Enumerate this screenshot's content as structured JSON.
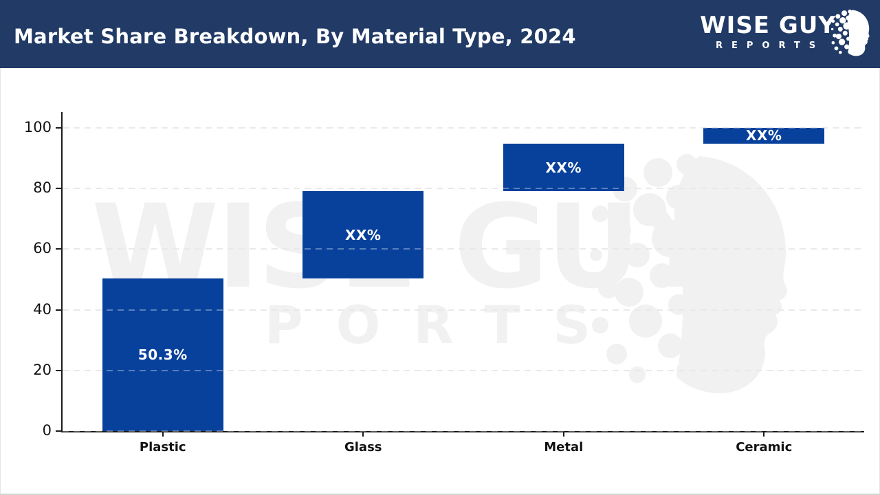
{
  "header": {
    "title": "Market Share Breakdown, By Material Type, 2024",
    "logo": {
      "line1": "WISE GUY",
      "line2": "REPORTS"
    }
  },
  "watermark": {
    "line1": "WISE GUY",
    "line2": "PORTS"
  },
  "chart_data": {
    "type": "bar",
    "subtype": "waterfall",
    "title": "Market Share Breakdown, By Material Type, 2024",
    "categories": [
      "Plastic",
      "Glass",
      "Metal",
      "Ceramic"
    ],
    "bars": [
      {
        "category": "Plastic",
        "start": 0,
        "end": 50.3,
        "label": "50.3%"
      },
      {
        "category": "Glass",
        "start": 50.3,
        "end": 79.1,
        "label": "XX%"
      },
      {
        "category": "Metal",
        "start": 79.1,
        "end": 94.8,
        "label": "XX%"
      },
      {
        "category": "Ceramic",
        "start": 94.8,
        "end": 100,
        "label": "XX%"
      }
    ],
    "y_ticks": [
      0,
      20,
      40,
      60,
      80,
      100
    ],
    "ylim": [
      0,
      105
    ],
    "xlabel": "",
    "ylabel": "",
    "legend": null,
    "grid": "dashed-horizontal",
    "colors": {
      "bar": "#08419c",
      "grid": "#dedede",
      "axis": "#1a1a1a",
      "bar_label_text": "#ffffff",
      "header_bg": "#213a66",
      "header_text": "#ffffff",
      "watermark": "#f1f1f2",
      "bottom_edge_line": "#d4d4d4"
    }
  }
}
